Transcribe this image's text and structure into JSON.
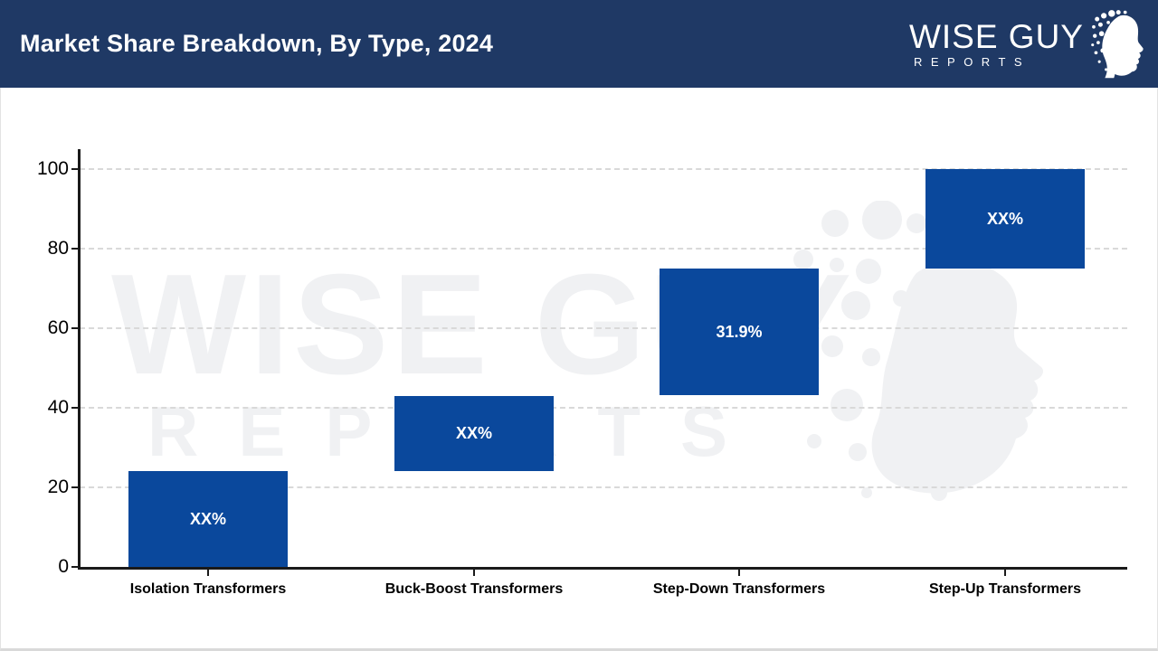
{
  "header": {
    "title": "Market Share Breakdown, By Type, 2024",
    "logo": {
      "name": "WISE GUY",
      "subtitle": "REPORTS"
    }
  },
  "watermark": {
    "line1": "WISE GUY",
    "line2": "REPORTS"
  },
  "chart_data": {
    "type": "bar",
    "subtype": "waterfall",
    "title": "Market Share Breakdown, By Type, 2024",
    "categories": [
      "Isolation Transformers",
      "Buck-Boost Transformers",
      "Step-Down Transformers",
      "Step-Up Transformers"
    ],
    "segments": [
      {
        "category": "Isolation Transformers",
        "start": 0,
        "end": 24,
        "label": "XX%"
      },
      {
        "category": "Buck-Boost Transformers",
        "start": 24,
        "end": 43,
        "label": "XX%"
      },
      {
        "category": "Step-Down Transformers",
        "start": 43.1,
        "end": 75,
        "label": "31.9%",
        "value": 31.9
      },
      {
        "category": "Step-Up Transformers",
        "start": 75,
        "end": 100,
        "label": "XX%"
      }
    ],
    "xlabel": "",
    "ylabel": "",
    "ylim": [
      0,
      100
    ],
    "yticks": [
      0,
      20,
      40,
      60,
      80,
      100
    ],
    "grid": {
      "horizontal": true,
      "style": "dashed"
    },
    "legend": false,
    "colors": {
      "bar": "#0a489c",
      "bar_label": "#ffffff",
      "axis": "#1a1a1a",
      "gridline": "#d9d9d9",
      "header_bg": "#1f3965",
      "header_text": "#ffffff",
      "watermark": "#f0f1f3"
    }
  }
}
